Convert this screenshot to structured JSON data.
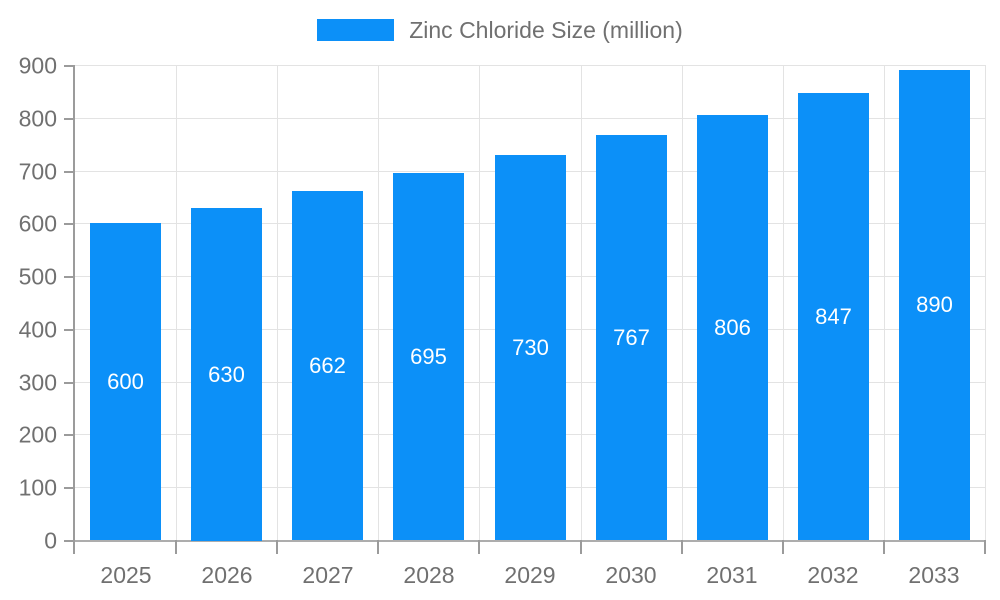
{
  "chart_data": {
    "type": "bar",
    "title": "",
    "legend": "Zinc Chloride Size (million)",
    "legend_position": "top-center",
    "categories": [
      "2025",
      "2026",
      "2027",
      "2028",
      "2029",
      "2030",
      "2031",
      "2032",
      "2033"
    ],
    "values": [
      600,
      630,
      662,
      695,
      730,
      767,
      806,
      847,
      890
    ],
    "xlabel": "",
    "ylabel": "",
    "ylim": [
      0,
      900
    ],
    "ytick_step": 100,
    "yticks": [
      "0",
      "100",
      "200",
      "300",
      "400",
      "500",
      "600",
      "700",
      "800",
      "900"
    ],
    "grid": true,
    "bar_labels_inside": true,
    "colors": {
      "bar": "#0C90F8",
      "grid": "#E3E3E3",
      "axis": "#9B9B9B",
      "x_axis": "#ADADAD",
      "text": "#707070",
      "bar_label": "#FFFFFF",
      "background": "#FFFFFF"
    }
  }
}
